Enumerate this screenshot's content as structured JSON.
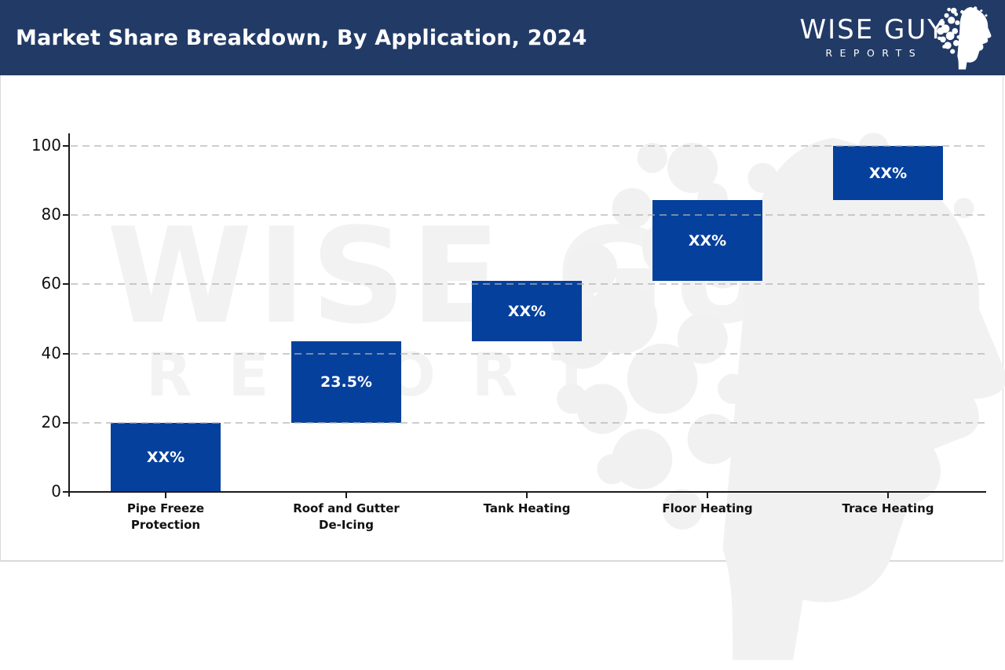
{
  "header": {
    "title": "Market Share Breakdown, By Application, 2024",
    "logo": {
      "line1": "WISE GUY",
      "line2": "REPORTS"
    }
  },
  "watermark": {
    "line1": "WISE GUY",
    "line2": "REPORTS"
  },
  "chart_data": {
    "type": "bar",
    "subtype": "waterfall",
    "title": "Market Share Breakdown, By Application, 2024",
    "categories": [
      "Pipe Freeze\nProtection",
      "Roof and Gutter\nDe-Icing",
      "Tank Heating",
      "Floor Heating",
      "Trace Heating"
    ],
    "bars": [
      {
        "category": "Pipe Freeze Protection",
        "start": 0,
        "end": 20,
        "label": "XX%"
      },
      {
        "category": "Roof and Gutter De-Icing",
        "start": 20,
        "end": 43.5,
        "label": "23.5%"
      },
      {
        "category": "Tank Heating",
        "start": 43.5,
        "end": 61,
        "label": "XX%"
      },
      {
        "category": "Floor Heating",
        "start": 61,
        "end": 84.3,
        "label": "XX%"
      },
      {
        "category": "Trace Heating",
        "start": 84.3,
        "end": 100,
        "label": "XX%"
      }
    ],
    "yticks": [
      0,
      20,
      40,
      60,
      80,
      100
    ],
    "ylim": [
      0,
      103.5
    ],
    "xlabel": "",
    "ylabel": "",
    "grid": "horizontal-dashed",
    "legend": "none",
    "bar_color": "#05409c"
  },
  "colors": {
    "header_bg": "#223a66",
    "bar": "#05409c",
    "gridline": "#d4d4d4",
    "axis": "#1a1a1a",
    "watermark": "#f2f2f2"
  }
}
